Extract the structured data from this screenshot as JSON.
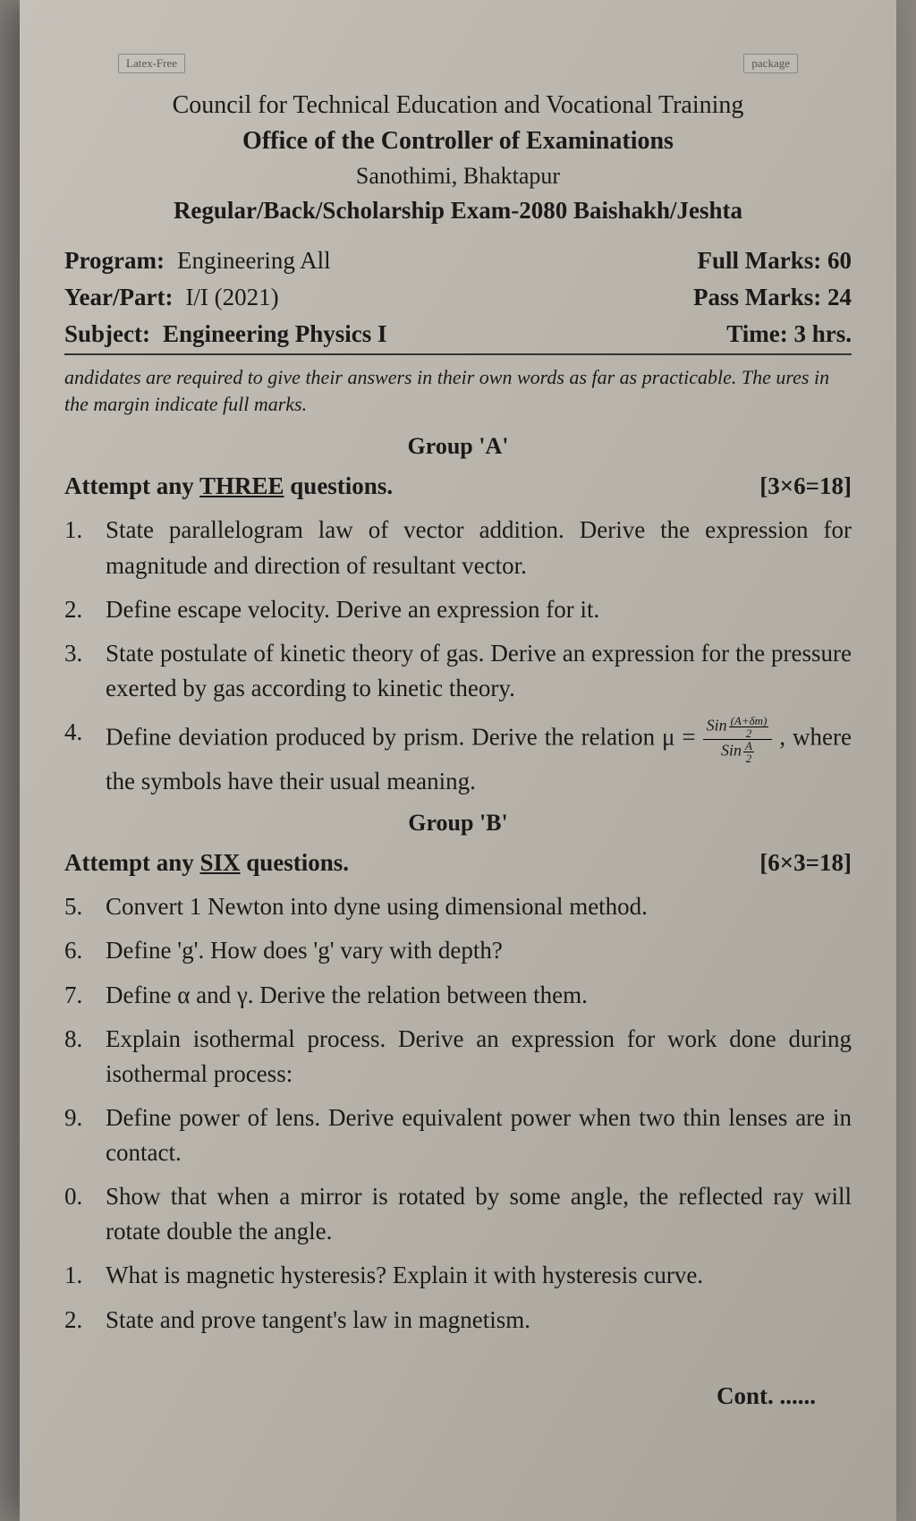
{
  "tags": {
    "left": "Latex-Free",
    "right": "package"
  },
  "header": {
    "line1": "Council for Technical Education and Vocational Training",
    "line2": "Office of the Controller of Examinations",
    "line3": "Sanothimi, Bhaktapur",
    "line4": "Regular/Back/Scholarship Exam-2080 Baishakh/Jeshta"
  },
  "info": {
    "row1": {
      "label": "Program:",
      "value": "Engineering All",
      "right": "Full Marks: 60"
    },
    "row2": {
      "label": "Year/Part:",
      "value": "I/I (2021)",
      "right": "Pass Marks: 24"
    },
    "row3": {
      "label": "Subject:",
      "value": "Engineering Physics I",
      "right": "Time: 3 hrs."
    }
  },
  "instructions": "andidates are required to give their answers in their own words as far as practicable. The ures in the margin indicate full marks.",
  "groupA": {
    "title": "Group 'A'",
    "attemptPrefix": "Attempt any ",
    "attemptUnderline": "THREE",
    "attemptSuffix": " questions.",
    "marks": "[3×6=18]",
    "questions": [
      {
        "n": "1.",
        "text": "State parallelogram law of vector addition. Derive the expression for magnitude and direction of resultant vector."
      },
      {
        "n": "2.",
        "text": "Define escape velocity. Derive an expression for it."
      },
      {
        "n": "3.",
        "text": "State postulate of kinetic theory of gas. Derive an expression for the pressure exerted by gas according to kinetic theory."
      },
      {
        "n": "4.",
        "prefix": "Define deviation produced by prism. Derive the relation μ = ",
        "suffix": ", where the symbols have their usual meaning.",
        "numTop": "(A+δm)",
        "numBot": "2",
        "sinLabel": "Sin",
        "denTop": "A",
        "denBot": "2"
      }
    ]
  },
  "groupB": {
    "title": "Group 'B'",
    "attemptPrefix": "Attempt any ",
    "attemptUnderline": "SIX",
    "attemptSuffix": " questions.",
    "marks": "[6×3=18]",
    "questions": [
      {
        "n": "5.",
        "text": "Convert 1 Newton into dyne using dimensional method."
      },
      {
        "n": "6.",
        "text": "Define 'g'. How does 'g' vary with depth?"
      },
      {
        "n": "7.",
        "text": "Define α and γ. Derive the relation between them."
      },
      {
        "n": "8.",
        "text": "Explain isothermal process. Derive an expression for work done during isothermal process:"
      },
      {
        "n": "9.",
        "text": "Define power of lens. Derive equivalent power when two thin lenses are in contact."
      },
      {
        "n": "0.",
        "text": "Show that when a mirror is rotated by some angle, the reflected ray will rotate double the angle."
      },
      {
        "n": "1.",
        "text": "What is magnetic hysteresis? Explain it with hysteresis curve."
      },
      {
        "n": "2.",
        "text": "State and prove tangent's law in magnetism."
      }
    ]
  },
  "cont": "Cont. ......"
}
